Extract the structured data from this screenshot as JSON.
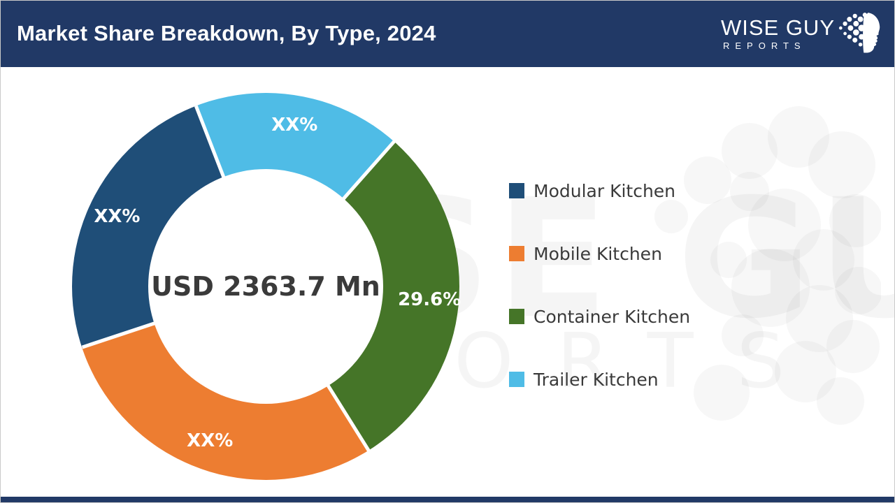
{
  "header": {
    "title": "Market Share Breakdown, By Type, 2024",
    "logo": {
      "line1": "WISE GUY",
      "line2": "REPORTS"
    }
  },
  "chart_data": {
    "type": "donut",
    "title": "Market Share Breakdown, By Type, 2024",
    "center_label": "USD 2363.7 Mn",
    "total_value": "USD 2363.7 Mn",
    "legend_position": "right",
    "start_angle_deg": 338.8,
    "label_radius_px": 235,
    "slices": [
      {
        "name": "Trailer Kitchen",
        "display_label": "XX%",
        "pct": 17.4,
        "value_labeled": false,
        "color": "#4FBCE6"
      },
      {
        "name": "Container Kitchen",
        "display_label": "29.6%",
        "pct": 29.6,
        "value_labeled": true,
        "color": "#457528"
      },
      {
        "name": "Mobile Kitchen",
        "display_label": "XX%",
        "pct": 28.8,
        "value_labeled": false,
        "color": "#ED7D31"
      },
      {
        "name": "Modular Kitchen",
        "display_label": "XX%",
        "pct": 24.2,
        "value_labeled": false,
        "color": "#1F4E78"
      }
    ]
  },
  "legend": {
    "items": [
      {
        "label": "Modular Kitchen",
        "color": "#1F4E78"
      },
      {
        "label": "Mobile Kitchen",
        "color": "#ED7D31"
      },
      {
        "label": "Container Kitchen",
        "color": "#457528"
      },
      {
        "label": "Trailer Kitchen",
        "color": "#4FBCE6"
      }
    ]
  },
  "watermark": {
    "line1": "WISE GUY",
    "line2": "REPORTS"
  }
}
